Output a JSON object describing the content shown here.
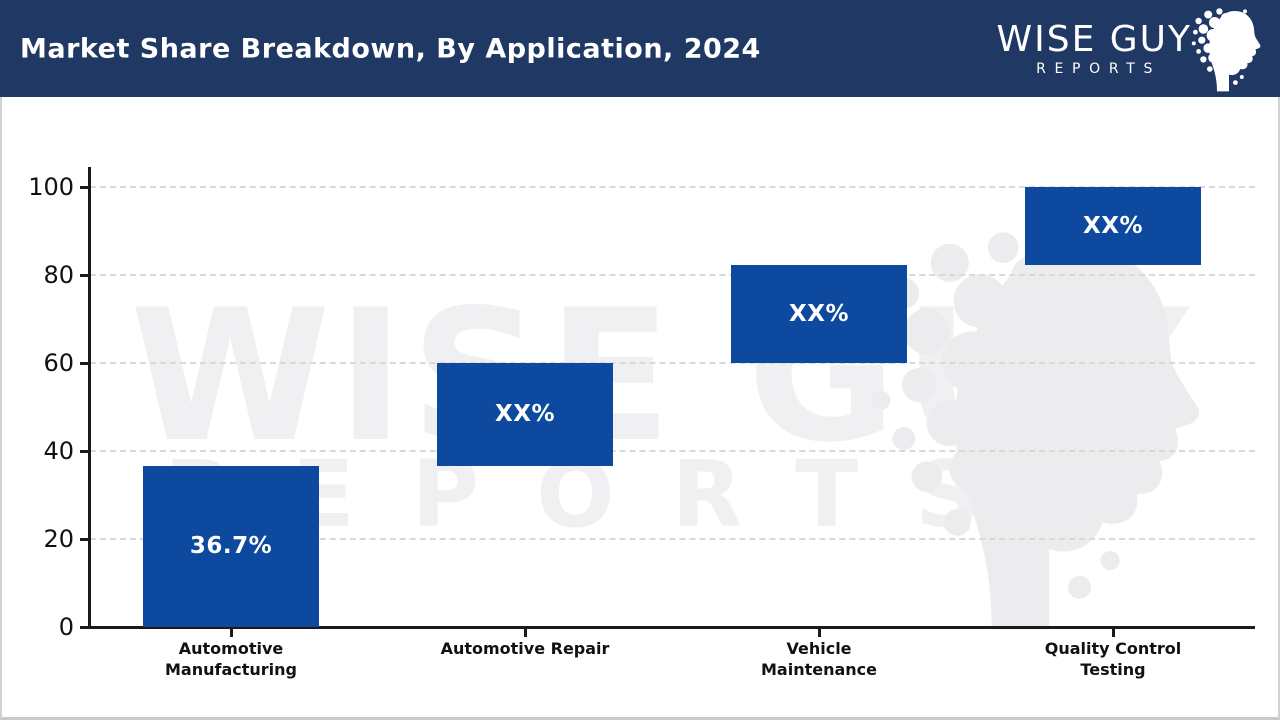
{
  "header": {
    "title": "Market Share Breakdown, By Application, 2024",
    "logo_line1": "WISE GUY",
    "logo_line2": "REPORTS"
  },
  "watermark": {
    "line1": "WISE GUY",
    "line2": "REPORTS"
  },
  "colors": {
    "header_bg": "#1f3864",
    "bar_fill": "#0d4a9f",
    "bar_label": "#ffffff",
    "axis": "#1a1a1a",
    "gridline": "#d9d9d9",
    "tick_label": "#111111",
    "watermark": "#f0f0f2"
  },
  "chart_data": {
    "type": "bar",
    "subtype": "waterfall",
    "title": "Market Share Breakdown, By Application, 2024",
    "xlabel": "",
    "ylabel": "",
    "ylim": [
      0,
      100
    ],
    "yticks": [
      0,
      20,
      40,
      60,
      80,
      100
    ],
    "grid": "horizontal-dashed",
    "legend": "none",
    "categories": [
      [
        "Automotive",
        "Manufacturing"
      ],
      [
        "Automotive Repair"
      ],
      [
        "Vehicle",
        "Maintenance"
      ],
      [
        "Quality Control",
        "Testing"
      ]
    ],
    "segments": [
      {
        "category": "Automotive Manufacturing",
        "start": 0,
        "end": 36.7,
        "value": 36.7,
        "label": "36.7%"
      },
      {
        "category": "Automotive Repair",
        "start": 36.7,
        "end": 60,
        "value_est": 23.3,
        "label": "XX%"
      },
      {
        "category": "Vehicle Maintenance",
        "start": 60,
        "end": 82.3,
        "value_est": 22.3,
        "label": "XX%"
      },
      {
        "category": "Quality Control Testing",
        "start": 82.3,
        "end": 100,
        "value_est": 17.7,
        "label": "XX%"
      }
    ]
  }
}
